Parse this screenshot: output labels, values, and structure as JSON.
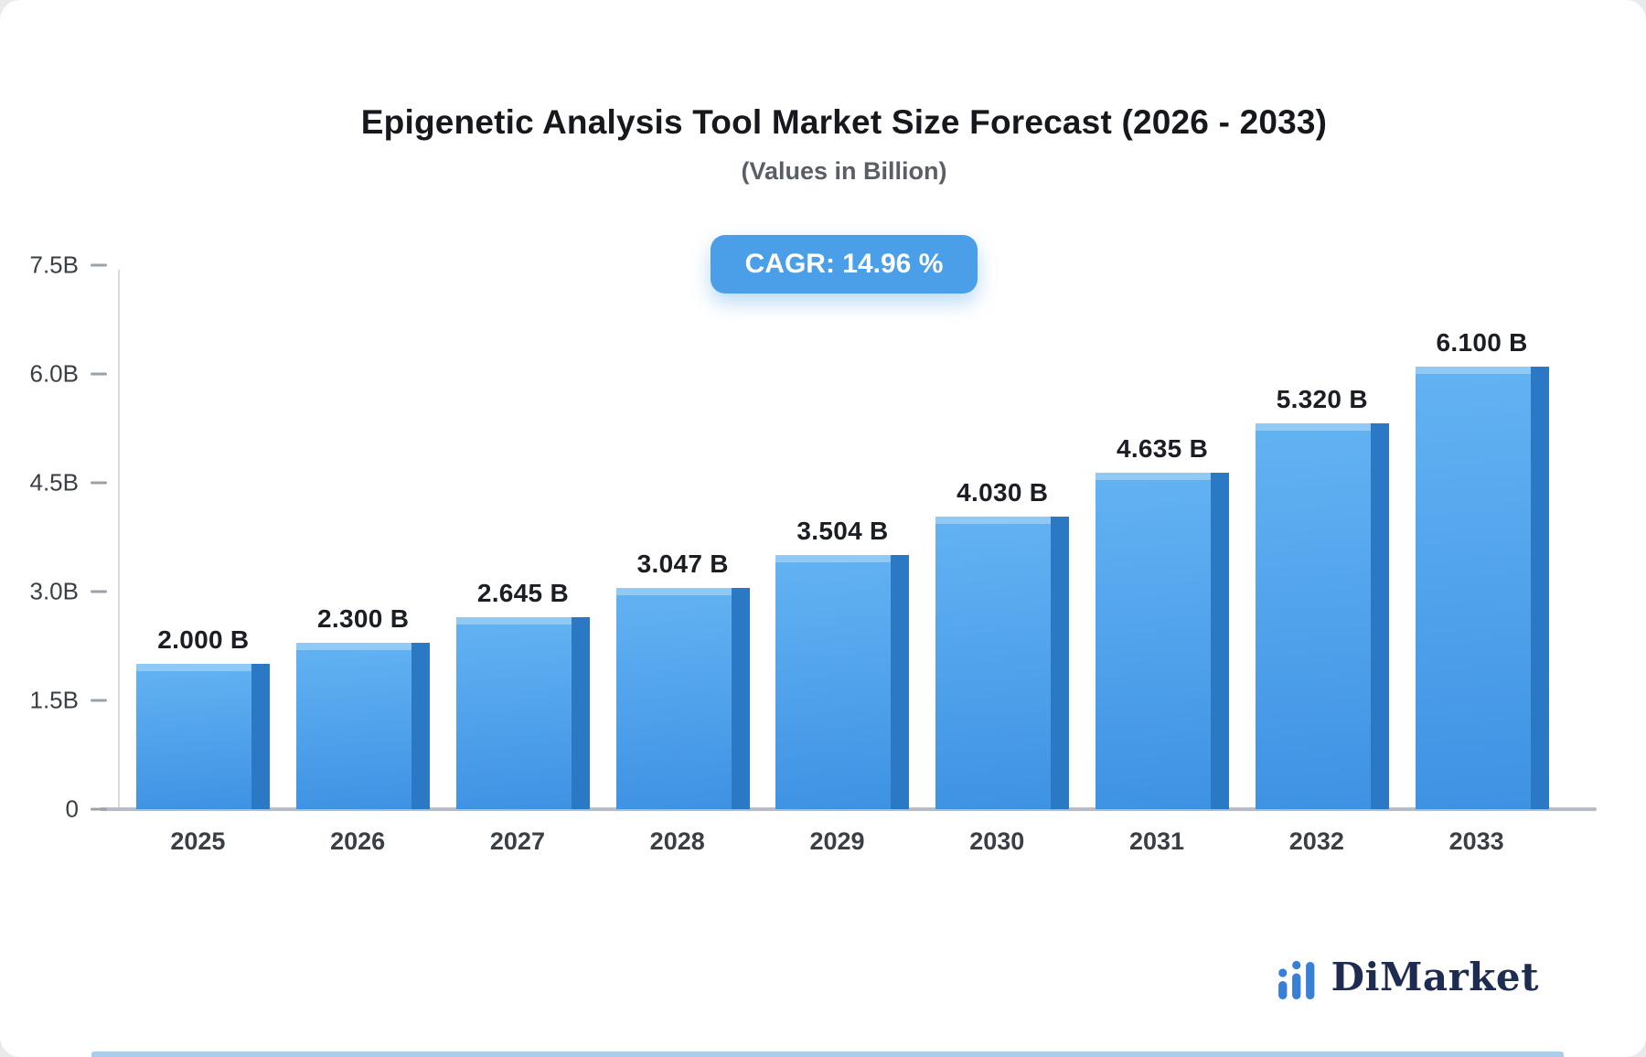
{
  "chart_data": {
    "type": "bar",
    "title": "Epigenetic Analysis Tool Market Size Forecast (2026 - 2033)",
    "subtitle": "(Values in Billion)",
    "annotation": "CAGR: 14.96 %",
    "categories": [
      "2025",
      "2026",
      "2027",
      "2028",
      "2029",
      "2030",
      "2031",
      "2032",
      "2033"
    ],
    "values": [
      2.0,
      2.3,
      2.645,
      3.047,
      3.504,
      4.03,
      4.635,
      5.32,
      6.1
    ],
    "value_labels": [
      "2.000 B",
      "2.300 B",
      "2.645 B",
      "3.047 B",
      "3.504 B",
      "4.030 B",
      "4.635 B",
      "5.320 B",
      "6.100 B"
    ],
    "xlabel": "",
    "ylabel": "",
    "ylim": [
      0,
      7.5
    ],
    "yticks": [
      0,
      1.5,
      3.0,
      4.5,
      6.0,
      7.5
    ],
    "ytick_labels": [
      "0",
      "1.5B",
      "3.0B",
      "4.5B",
      "6.0B",
      "7.5B"
    ],
    "grid": false,
    "legend": false,
    "bar_colors": {
      "face_top": "#63b3f3",
      "face_bottom": "#3e92e3",
      "side": "#2b79c4",
      "highlight": "#8fc9f6"
    },
    "axis_color": "#b7bdc5"
  },
  "badge": {
    "label": "CAGR: 14.96 %",
    "background": "#4a9fe8",
    "text_color": "#ffffff"
  },
  "brand": {
    "name": "DiMarket",
    "icon": "bar-chart-logo-icon",
    "text_color": "#1d2c50",
    "icon_color": "#3a7fd6"
  },
  "colors": {
    "title": "#15181d",
    "subtitle": "#5a5f67",
    "value_label": "#1b1e24",
    "tick_label": "#3a3f46",
    "accent_strip": "#a9cdeb"
  }
}
